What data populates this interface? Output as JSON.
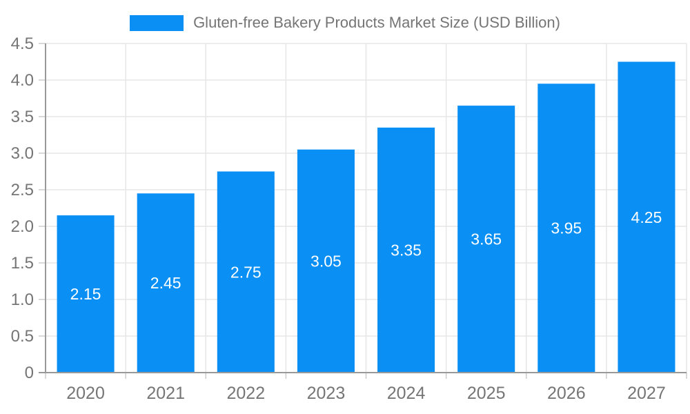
{
  "chart_data": {
    "type": "bar",
    "title": "Gluten-free Bakery Products Market Size (USD Billion)",
    "categories": [
      "2020",
      "2021",
      "2022",
      "2023",
      "2024",
      "2025",
      "2026",
      "2027"
    ],
    "values": [
      2.15,
      2.45,
      2.75,
      3.05,
      3.35,
      3.65,
      3.95,
      4.25
    ],
    "value_labels": [
      "2.15",
      "2.45",
      "2.75",
      "3.05",
      "3.35",
      "3.65",
      "3.95",
      "4.25"
    ],
    "xlabel": "",
    "ylabel": "",
    "ylim": [
      0,
      4.5
    ],
    "y_tick_step": 0.5,
    "y_tick_labels": [
      "0",
      "0.5",
      "1.0",
      "1.5",
      "2.0",
      "2.5",
      "3.0",
      "3.5",
      "4.0",
      "4.5"
    ],
    "grid": true,
    "legend_position": "top",
    "colors": {
      "bar": "#0a8ff5",
      "grid": "#e6e6e6",
      "axis": "#999999",
      "tick": "#cccccc",
      "label_text": "#757575",
      "value_text": "#ffffff",
      "background": "#ffffff"
    }
  }
}
